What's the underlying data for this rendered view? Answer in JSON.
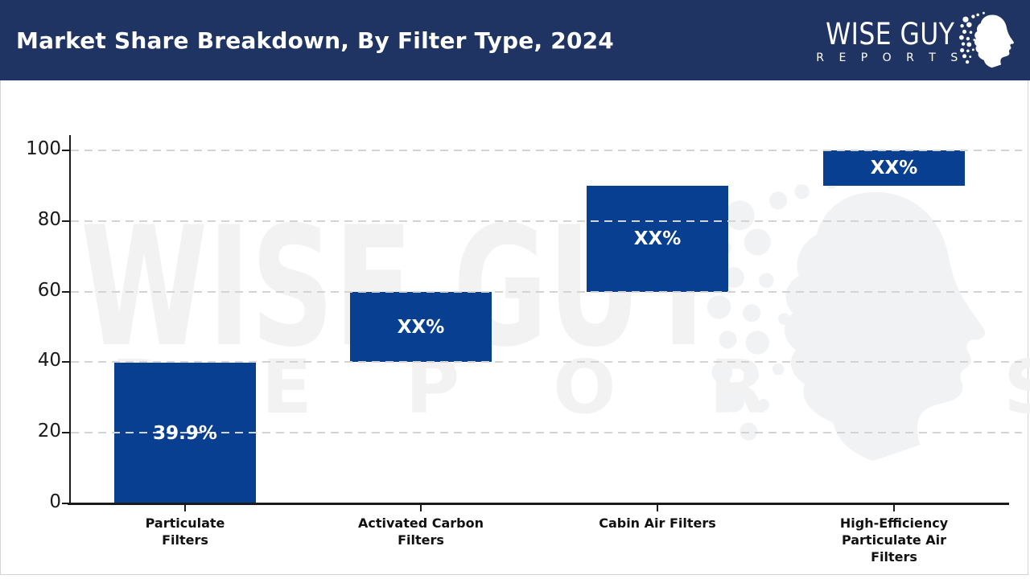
{
  "header": {
    "title": "Market Share Breakdown, By Filter Type, 2024",
    "logo": {
      "wordmark": "WISE GUY",
      "subtext": "R E P O R T S"
    }
  },
  "watermark": {
    "wordmark": "WISE GUY",
    "subtext": "R E P O R T S"
  },
  "colors": {
    "header_bg": "#1f3462",
    "bar": "#083f90",
    "grid": "#d4d4d4",
    "axis": "#1a1a1a",
    "watermark": "#f2f2f2",
    "frame_border": "#d4d4d4"
  },
  "chart_data": {
    "type": "bar",
    "subtype": "waterfall",
    "title": "Market Share Breakdown, By Filter Type, 2024",
    "categories": [
      "Particulate Filters",
      "Activated Carbon Filters",
      "Cabin Air Filters",
      "High-Efficiency Particulate Air Filters"
    ],
    "category_label_lines": [
      [
        "Particulate",
        "Filters"
      ],
      [
        "Activated Carbon",
        "Filters"
      ],
      [
        "Cabin Air Filters"
      ],
      [
        "High-Efficiency",
        "Particulate Air",
        "Filters"
      ]
    ],
    "segments": [
      {
        "category": "Particulate Filters",
        "start": 0,
        "end": 39.9,
        "label": "39.9%"
      },
      {
        "category": "Activated Carbon Filters",
        "start": 40,
        "end": 60,
        "label": "XX%"
      },
      {
        "category": "Cabin Air Filters",
        "start": 60,
        "end": 90,
        "label": "XX%"
      },
      {
        "category": "High-Efficiency Particulate Air Filters",
        "start": 90,
        "end": 100,
        "label": "XX%"
      }
    ],
    "xlabel": "",
    "ylabel": "",
    "ylim": [
      0,
      100
    ],
    "y_ticks": [
      0,
      20,
      40,
      60,
      80,
      100
    ],
    "grid": "horizontal dashed",
    "legend": "none"
  }
}
